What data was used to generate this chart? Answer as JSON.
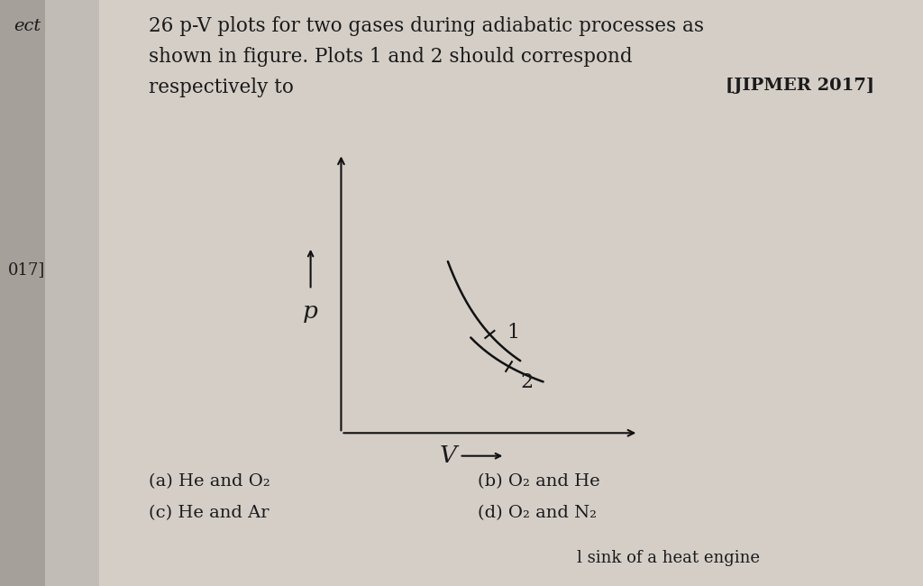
{
  "bg_color": "#d4cec7",
  "bg_left_color": "#b8b4b0",
  "text_color": "#1a1a1a",
  "title_line1": "p-V plots for two gases during adiabatic processes as",
  "title_line2": "shown in figure. Plots 1 and 2 should correspond",
  "title_line3": "respectively to",
  "reference": "[JIPMER 2017]",
  "xlabel": "V",
  "ylabel": "p",
  "curve1_label": "1",
  "curve2_label": "2",
  "axis_color": "#111111",
  "curve_color": "#111111",
  "choices_left": [
    "(a) He and O₂",
    "(c) He and Ar"
  ],
  "choices_right": [
    "(b) O₂ and He",
    "(d) O₂ and N₂"
  ],
  "bottom_text": "l sink of a heat engine",
  "left_margin_top": "ect",
  "left_margin_mid": "017]",
  "curve1_gamma": 1.67,
  "curve2_gamma": 1.4,
  "C1": 4.2,
  "C2": 2.8,
  "V_min1": 1.3,
  "V_max1": 2.4,
  "V_min2": 1.6,
  "V_max2": 2.6,
  "V_tick1": 1.95,
  "V_tick2": 2.15
}
